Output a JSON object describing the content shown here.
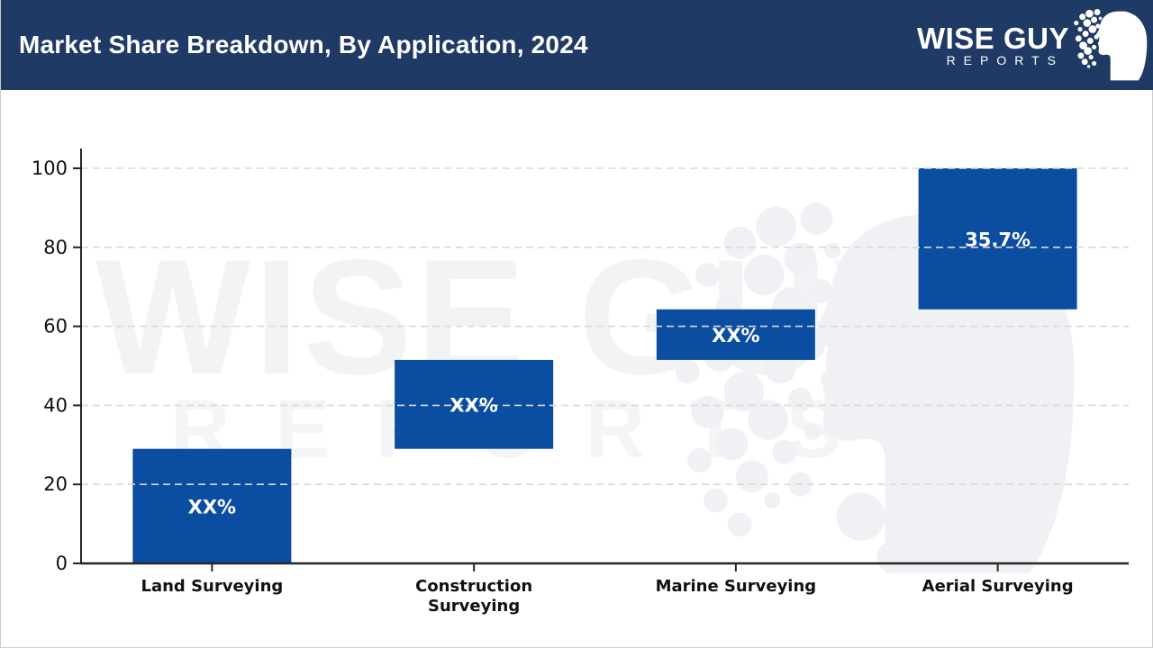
{
  "header": {
    "title": "Market Share Breakdown, By Application, 2024",
    "logo": {
      "line1": "WISE GUY",
      "line2": "REPORTS"
    }
  },
  "watermark": {
    "line1": "WISE GUY",
    "line2": "REPORTS"
  },
  "colors": {
    "header_bg": "#203A66",
    "bar": "#0B4DA1",
    "axis": "#262626",
    "grid": "#d9d9d9",
    "watermark": "#f2f3f5"
  },
  "chart_data": {
    "type": "bar",
    "subtype": "waterfall",
    "title": "Market Share Breakdown, By Application, 2024",
    "categories": [
      "Land Surveying",
      "Construction Surveying",
      "Marine Surveying",
      "Aerial Surveying"
    ],
    "bars": [
      {
        "category": "Land Surveying",
        "category_lines": [
          "Land Surveying"
        ],
        "label": "XX%",
        "start": 0,
        "end": 29
      },
      {
        "category": "Construction Surveying",
        "category_lines": [
          "Construction",
          "Surveying"
        ],
        "label": "XX%",
        "start": 29,
        "end": 51.5
      },
      {
        "category": "Marine Surveying",
        "category_lines": [
          "Marine Surveying"
        ],
        "label": "XX%",
        "start": 51.5,
        "end": 64.3
      },
      {
        "category": "Aerial Surveying",
        "category_lines": [
          "Aerial Surveying"
        ],
        "label": "35.7%",
        "start": 64.3,
        "end": 100
      }
    ],
    "ylim": [
      0,
      100
    ],
    "yticks": [
      0,
      20,
      40,
      60,
      80,
      100
    ],
    "bar_color": "#0B4DA1",
    "grid": "horizontal-dashed",
    "legend": "none",
    "xlabel": "",
    "ylabel": ""
  }
}
